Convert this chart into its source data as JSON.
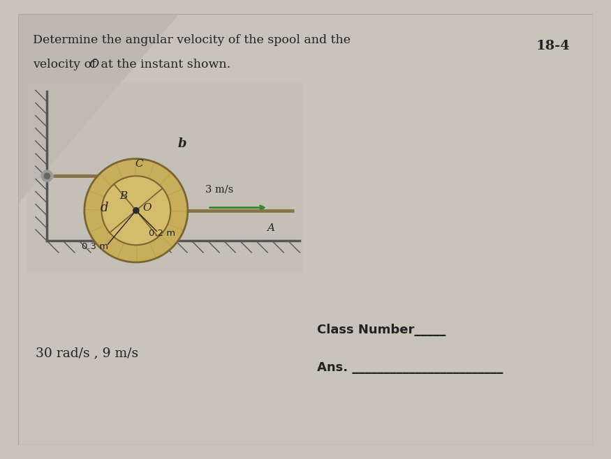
{
  "title_line1": "Determine the angular velocity of the spool and the",
  "title_line2_pre": "velocity of ",
  "title_line2_italic": "O",
  "title_line2_post": " at the instant shown.",
  "problem_number": "18-4",
  "bg_outer": "#c8c4bc",
  "bg_card": "#eeebe5",
  "label_b_top": "b",
  "label_c": "C",
  "label_b_inner": "B",
  "label_o": "O",
  "label_d": "d",
  "label_a": "A",
  "velocity_label": "3 m/s",
  "dim_inner": "0.2 m",
  "dim_outer": "0.3 m",
  "answer": "30 rad/s , 9 m/s",
  "class_label": "Class Number_____",
  "ans_label": "Ans.",
  "spool_outer_color": "#c8ae5a",
  "spool_inner_color": "#d4bc6a",
  "spool_edge_color": "#7a6530",
  "spool_grain_color": "#b89a40",
  "rod_color": "#8a7248",
  "wall_color": "#555555",
  "floor_color": "#555555",
  "arrow_color": "#2a8a2a",
  "text_color": "#222222",
  "pin_color": "#999999"
}
